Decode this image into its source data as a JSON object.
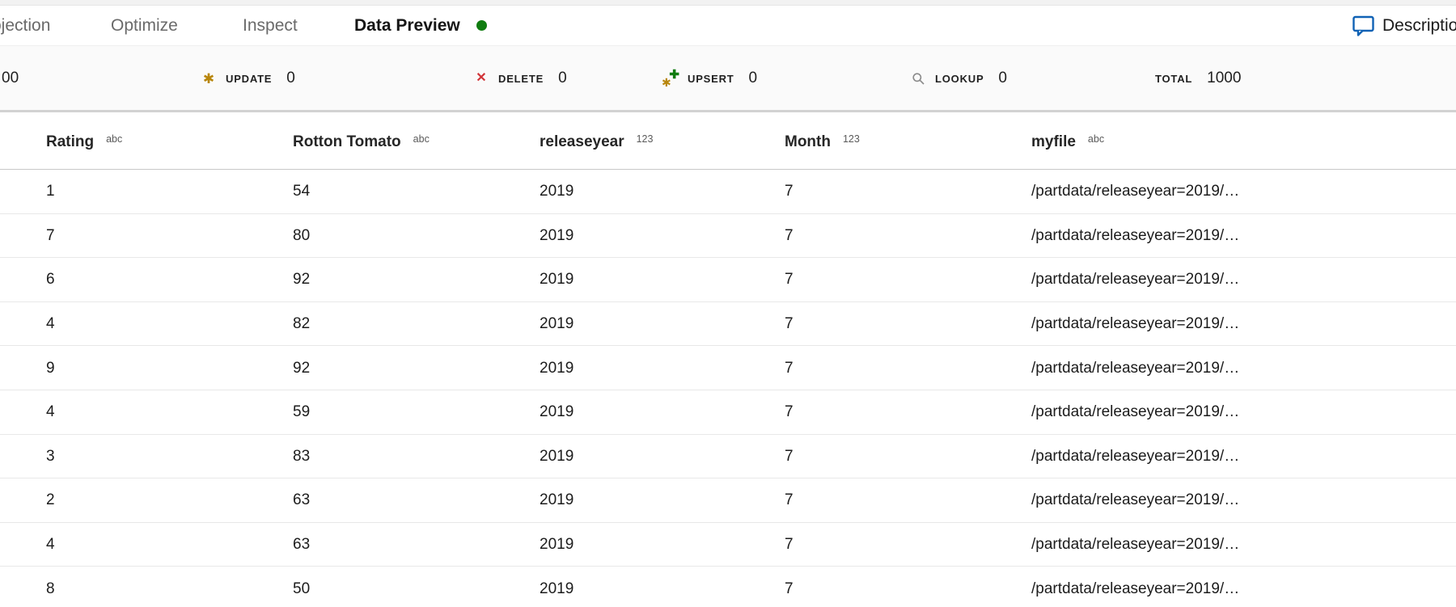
{
  "tabs": {
    "items": [
      {
        "label": "Projection",
        "state": "inactive-clipped-left"
      },
      {
        "label": "Optimize",
        "state": "inactive"
      },
      {
        "label": "Inspect",
        "state": "inactive"
      },
      {
        "label": "Data Preview",
        "state": "active",
        "has_status_dot": true
      }
    ],
    "description_label": "Description"
  },
  "stats": {
    "insert_partial_value": "00",
    "items": [
      {
        "icon": "update-asterisk-icon",
        "label": "UPDATE",
        "value": "0"
      },
      {
        "icon": "delete-x-icon",
        "label": "DELETE",
        "value": "0"
      },
      {
        "icon": "upsert-asterisk-plus-icon",
        "label": "UPSERT",
        "value": "0"
      },
      {
        "icon": "lookup-magnifier-icon",
        "label": "LOOKUP",
        "value": "0"
      }
    ],
    "total": {
      "label": "TOTAL",
      "value": "1000"
    }
  },
  "table": {
    "columns": [
      {
        "name": "Rating",
        "type": "abc"
      },
      {
        "name": "Rotton Tomato",
        "type": "abc"
      },
      {
        "name": "releaseyear",
        "type": "123"
      },
      {
        "name": "Month",
        "type": "123"
      },
      {
        "name": "myfile",
        "type": "abc"
      }
    ],
    "rows": [
      [
        "1",
        "54",
        "2019",
        "7",
        "/partdata/releaseyear=2019/…"
      ],
      [
        "7",
        "80",
        "2019",
        "7",
        "/partdata/releaseyear=2019/…"
      ],
      [
        "6",
        "92",
        "2019",
        "7",
        "/partdata/releaseyear=2019/…"
      ],
      [
        "4",
        "82",
        "2019",
        "7",
        "/partdata/releaseyear=2019/…"
      ],
      [
        "9",
        "92",
        "2019",
        "7",
        "/partdata/releaseyear=2019/…"
      ],
      [
        "4",
        "59",
        "2019",
        "7",
        "/partdata/releaseyear=2019/…"
      ],
      [
        "3",
        "83",
        "2019",
        "7",
        "/partdata/releaseyear=2019/…"
      ],
      [
        "2",
        "63",
        "2019",
        "7",
        "/partdata/releaseyear=2019/…"
      ],
      [
        "4",
        "63",
        "2019",
        "7",
        "/partdata/releaseyear=2019/…"
      ],
      [
        "8",
        "50",
        "2019",
        "7",
        "/partdata/releaseyear=2019/…"
      ]
    ]
  },
  "colors": {
    "accent_blue": "#1062b5",
    "status_green": "#107c10",
    "update_gold": "#b8860b",
    "delete_red": "#d13438",
    "lookup_gray": "#8a8a8a",
    "statsbar_bg": "#fafafa",
    "divider_gray": "#d2d2d2",
    "row_border": "#e8e8e8"
  }
}
